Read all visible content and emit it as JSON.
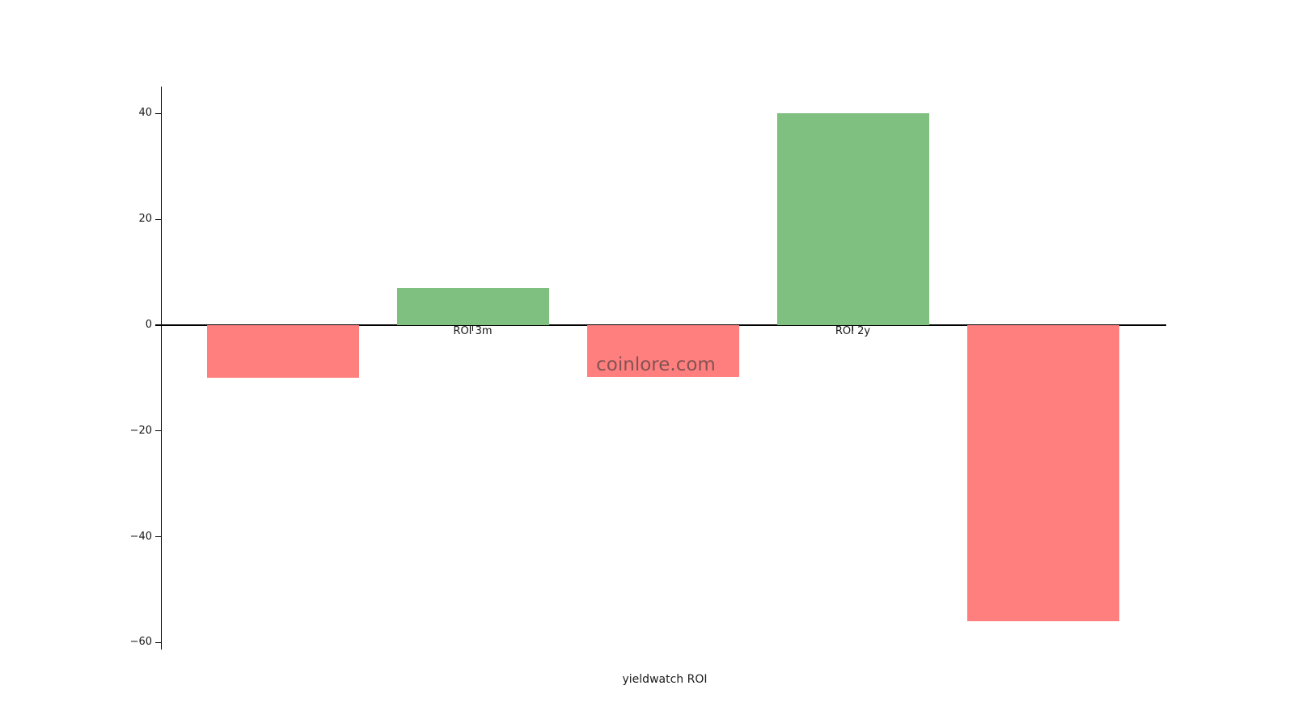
{
  "chart_data": {
    "type": "bar",
    "title": "",
    "xlabel": "yieldwatch ROI",
    "ylabel": "",
    "categories": [
      "",
      "ROI 3m",
      "",
      "ROI 2y",
      ""
    ],
    "values": [
      -9.9,
      7.0,
      -9.8,
      40.0,
      -56.0
    ],
    "bar_colors": [
      "#ff7f7f",
      "#7fbf7f",
      "#ff7f7f",
      "#7fbf7f",
      "#ff7f7f"
    ],
    "yticks": [
      40,
      20,
      0,
      -20,
      -40,
      -60
    ],
    "ytick_labels": [
      "40",
      "20",
      "0",
      "−20",
      "−40",
      "−60"
    ],
    "ylim": [
      -61.2,
      45.3
    ],
    "grid": false,
    "legend": false,
    "zero_baseline": true
  },
  "watermark": {
    "text": "coinlore.com",
    "color": "#373737",
    "opacity": 0.62
  },
  "colors": {
    "positive_bar": "#7fbf7f",
    "negative_bar": "#ff7f7f",
    "axis": "#000000",
    "tick_text": "#1a1a1a",
    "background": "#ffffff"
  }
}
